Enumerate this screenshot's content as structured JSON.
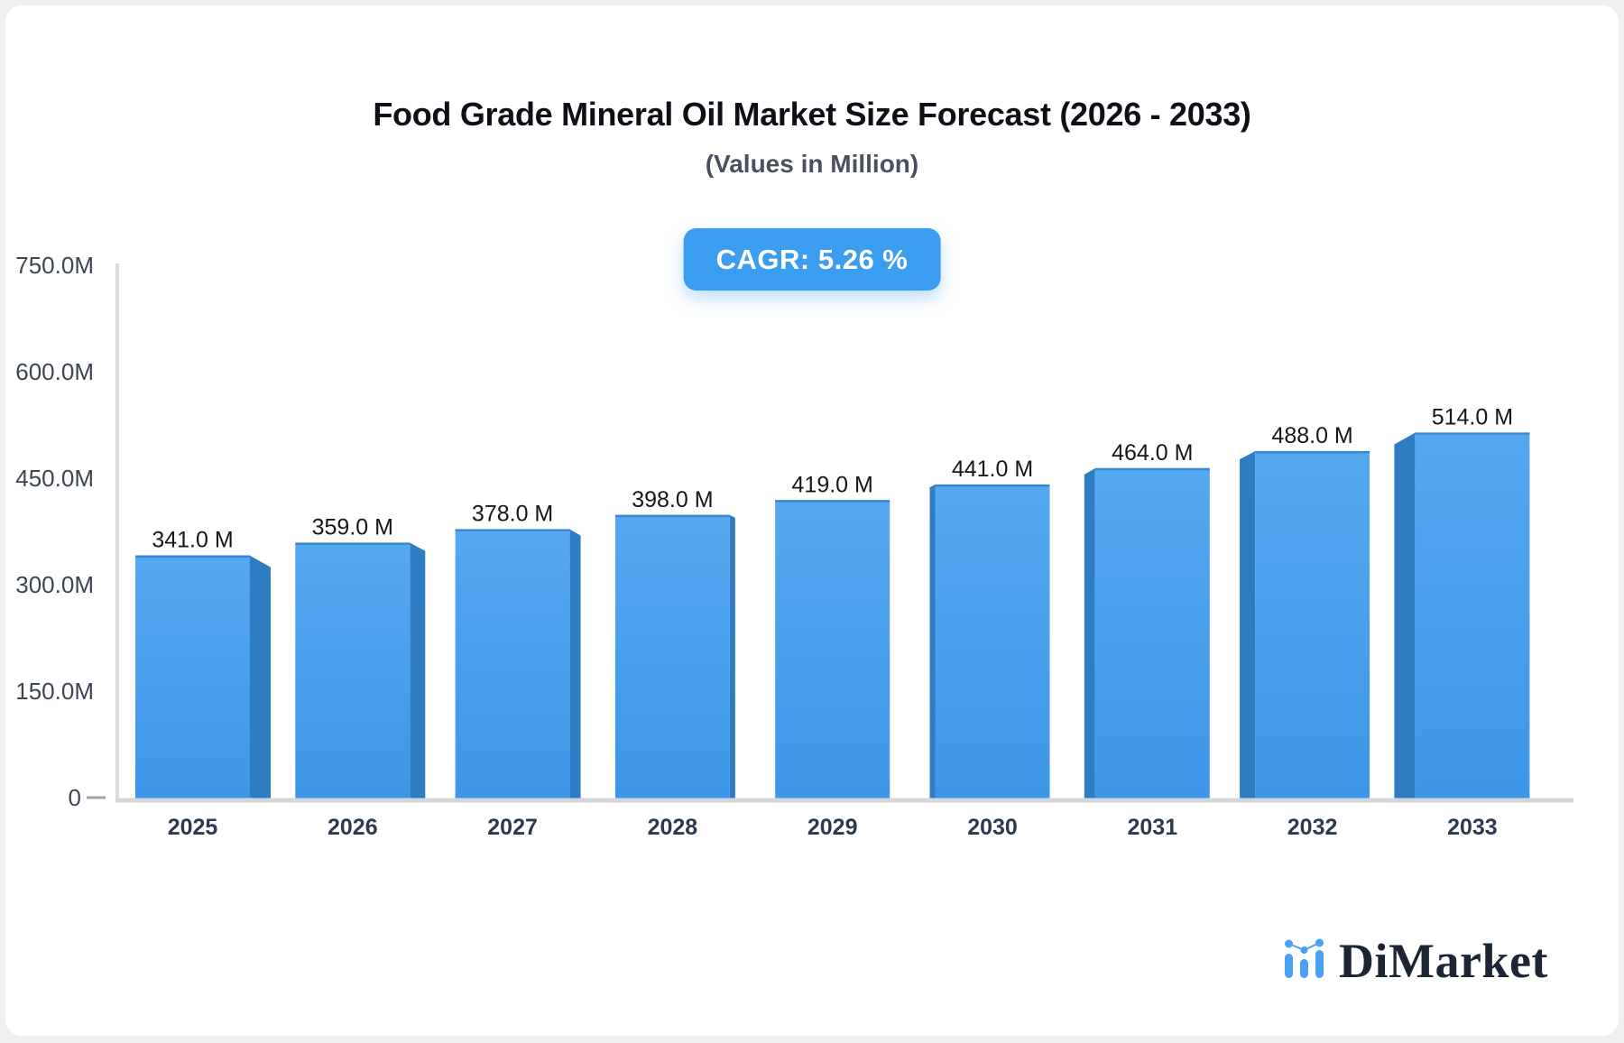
{
  "page": {
    "frame_color": "#edeff1",
    "card_color": "#ffffff"
  },
  "chart_data": {
    "type": "bar",
    "title": "Food Grade Mineral Oil Market Size Forecast (2026 - 2033)",
    "subtitle": "(Values in Million)",
    "categories": [
      "2025",
      "2026",
      "2027",
      "2028",
      "2029",
      "2030",
      "2031",
      "2032",
      "2033"
    ],
    "values": [
      341,
      359,
      378,
      398,
      419,
      441,
      464,
      488,
      514
    ],
    "bar_labels": [
      "341.0 M",
      "359.0 M",
      "378.0 M",
      "398.0 M",
      "419.0 M",
      "441.0 M",
      "464.0 M",
      "488.0 M",
      "514.0 M"
    ],
    "ylim": [
      0,
      750
    ],
    "yticks": {
      "values": [
        0,
        150,
        300,
        450,
        600,
        750
      ],
      "labels": [
        "0",
        "150.0M",
        "300.0M",
        "450.0M",
        "600.0M",
        "750.0M"
      ]
    },
    "grid": false,
    "legend": false,
    "colors": {
      "bar_face_top": "#55a8f0",
      "bar_face_bottom": "#3e96e9",
      "bar_side": "#2e7cc2",
      "bar_top_edge": "#3a87d0",
      "axis": "#d7dade",
      "baseline": "#d3d7db",
      "zero_tick": "#9ba3ad"
    }
  },
  "badge": {
    "label": "CAGR: 5.26 %",
    "color": "#3b9df0",
    "text_color": "#ffffff"
  },
  "footer": {
    "logo_text": "DiMarket",
    "logo_color": "#1c2534",
    "logo_icon_color": "#4aa0f2"
  }
}
